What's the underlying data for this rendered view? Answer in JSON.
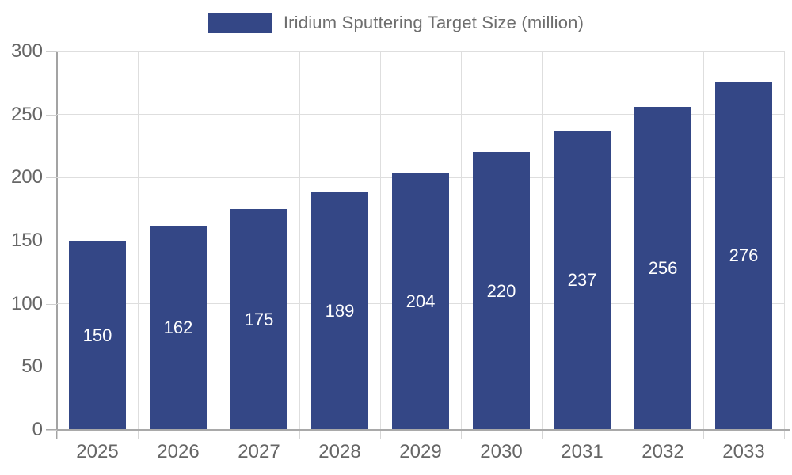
{
  "legend": {
    "label": "Iridium Sputtering Target Size (million)"
  },
  "chart_data": {
    "type": "bar",
    "title": "",
    "xlabel": "",
    "ylabel": "",
    "categories": [
      "2025",
      "2026",
      "2027",
      "2028",
      "2029",
      "2030",
      "2031",
      "2032",
      "2033"
    ],
    "values": [
      150,
      162,
      175,
      189,
      204,
      220,
      237,
      256,
      276
    ],
    "series_name": "Iridium Sputtering Target Size (million)",
    "value_labels_shown": true,
    "ylim": [
      0,
      300
    ],
    "yticks": [
      0,
      50,
      100,
      150,
      200,
      250,
      300
    ],
    "grid": true,
    "legend_position": "top-center",
    "colors": {
      "bar": "#344786",
      "value_label": "#ffffff",
      "gridline": "#dedede",
      "axis_line": "#a3a3a3",
      "tick_label": "#666666",
      "legend_text": "#6e6e6e",
      "background": "#ffffff"
    }
  }
}
